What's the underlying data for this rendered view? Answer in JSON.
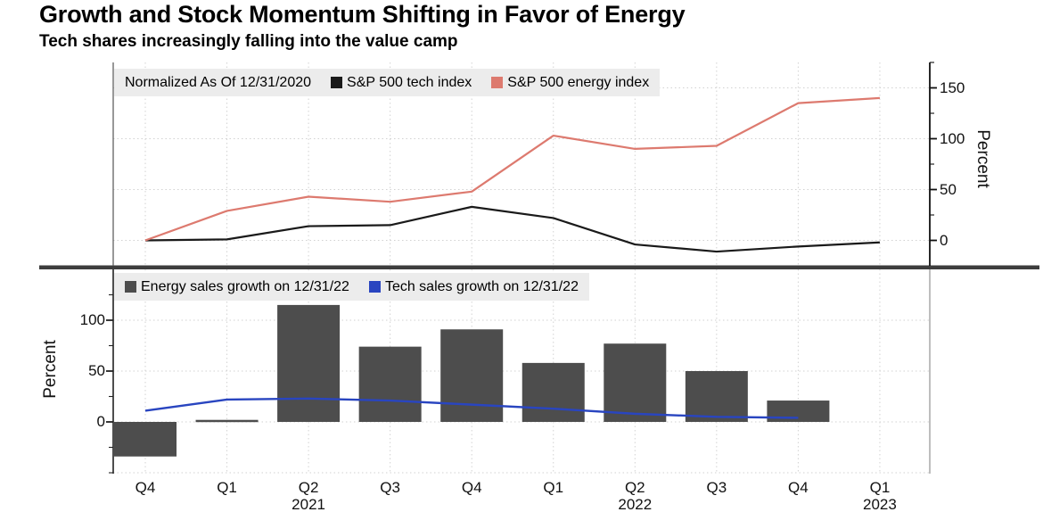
{
  "header": {
    "title": "Growth and Stock Momentum Shifting in Favor of Energy",
    "subtitle": "Tech shares increasingly falling into the value camp"
  },
  "top_chart": {
    "note": "Normalized As Of 12/31/2020",
    "ylabel": "Percent",
    "yticks": [
      "0",
      "50",
      "100",
      "150"
    ]
  },
  "bottom_chart": {
    "ylabel": "Percent",
    "yticks": [
      "0",
      "50",
      "100"
    ]
  },
  "x_axis": {
    "quarters": [
      "Q4",
      "Q1",
      "Q2",
      "Q3",
      "Q4",
      "Q1",
      "Q2",
      "Q3",
      "Q4",
      "Q1"
    ],
    "years": [
      {
        "label": "2021",
        "index": 2
      },
      {
        "label": "2022",
        "index": 6
      },
      {
        "label": "2023",
        "index": 9
      }
    ]
  },
  "colors": {
    "tech_index": "#1a1a1a",
    "energy_index": "#dd7a6f",
    "energy_sales_bar": "#4d4d4d",
    "tech_sales_line": "#2945c0",
    "legend_band": "#ececec",
    "separator": "#3d3d3d",
    "gridline": "#d2d2d2"
  },
  "chart_data": [
    {
      "type": "line",
      "panel": "top",
      "title": "Growth and Stock Momentum Shifting in Favor of Energy",
      "subtitle": "Tech shares increasingly falling into the value camp",
      "note": "Normalized As Of 12/31/2020",
      "categories": [
        "Q4 2020",
        "Q1 2021",
        "Q2 2021",
        "Q3 2021",
        "Q4 2021",
        "Q1 2022",
        "Q2 2022",
        "Q3 2022",
        "Q4 2022",
        "Q1 2023"
      ],
      "series": [
        {
          "name": "S&P 500 tech index",
          "color": "#1a1a1a",
          "values": [
            0,
            1,
            14,
            15,
            33,
            22,
            -4,
            -11,
            -6,
            -2
          ]
        },
        {
          "name": "S&P 500 energy index",
          "color": "#dd7a6f",
          "values": [
            0,
            29,
            43,
            38,
            48,
            103,
            90,
            93,
            135,
            140
          ]
        }
      ],
      "xlabel": "",
      "ylabel": "Percent",
      "ylabel_side": "right",
      "yticks": [
        0,
        50,
        100,
        150
      ],
      "ylim": [
        -25,
        175
      ],
      "grid": true,
      "legend_position": "top-left"
    },
    {
      "type": "bar",
      "panel": "bottom",
      "categories": [
        "Q4 2020",
        "Q1 2021",
        "Q2 2021",
        "Q3 2021",
        "Q4 2021",
        "Q1 2022",
        "Q2 2022",
        "Q3 2022",
        "Q4 2022",
        "Q1 2023"
      ],
      "series": [
        {
          "name": "Energy sales growth on 12/31/22",
          "type": "bar",
          "color": "#4d4d4d",
          "values": [
            -34,
            2,
            115,
            74,
            91,
            58,
            77,
            50,
            21,
            null
          ]
        },
        {
          "name": "Tech sales growth on 12/31/22",
          "type": "line",
          "color": "#2945c0",
          "values": [
            11,
            22,
            23,
            21,
            17,
            13,
            8,
            5,
            4,
            null
          ]
        }
      ],
      "xlabel": "",
      "ylabel": "Percent",
      "ylabel_side": "left",
      "yticks": [
        0,
        50,
        100
      ],
      "ylim": [
        -50,
        150
      ],
      "grid": true,
      "legend_position": "top-left"
    }
  ]
}
